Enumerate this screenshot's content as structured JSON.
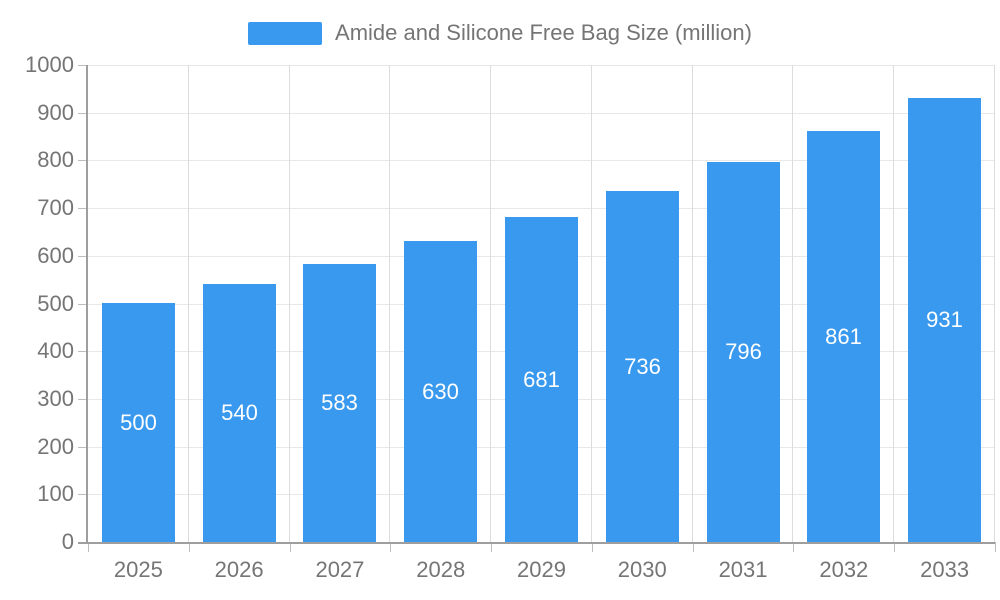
{
  "chart_data": {
    "type": "bar",
    "title": "Amide and Silicone Free Bag Size (million)",
    "categories": [
      "2025",
      "2026",
      "2027",
      "2028",
      "2029",
      "2030",
      "2031",
      "2032",
      "2033"
    ],
    "values": [
      500,
      540,
      583,
      630,
      681,
      736,
      796,
      861,
      931
    ],
    "xlabel": "",
    "ylabel": "",
    "ylim": [
      0,
      1000
    ],
    "y_tick_step": 100,
    "y_ticks": [
      0,
      100,
      200,
      300,
      400,
      500,
      600,
      700,
      800,
      900,
      1000
    ],
    "grid": true,
    "legend_position": "top-center",
    "colors": {
      "bar": "#3999EE",
      "bar_value_label": "#FFFFFF",
      "axis_text": "#757575",
      "gridline_horizontal": "#E8E8E8",
      "gridline_vertical": "#DCDCDC",
      "axis_line": "#9E9E9E",
      "tick": "#BDBDBD",
      "background": "#FFFFFF"
    }
  }
}
